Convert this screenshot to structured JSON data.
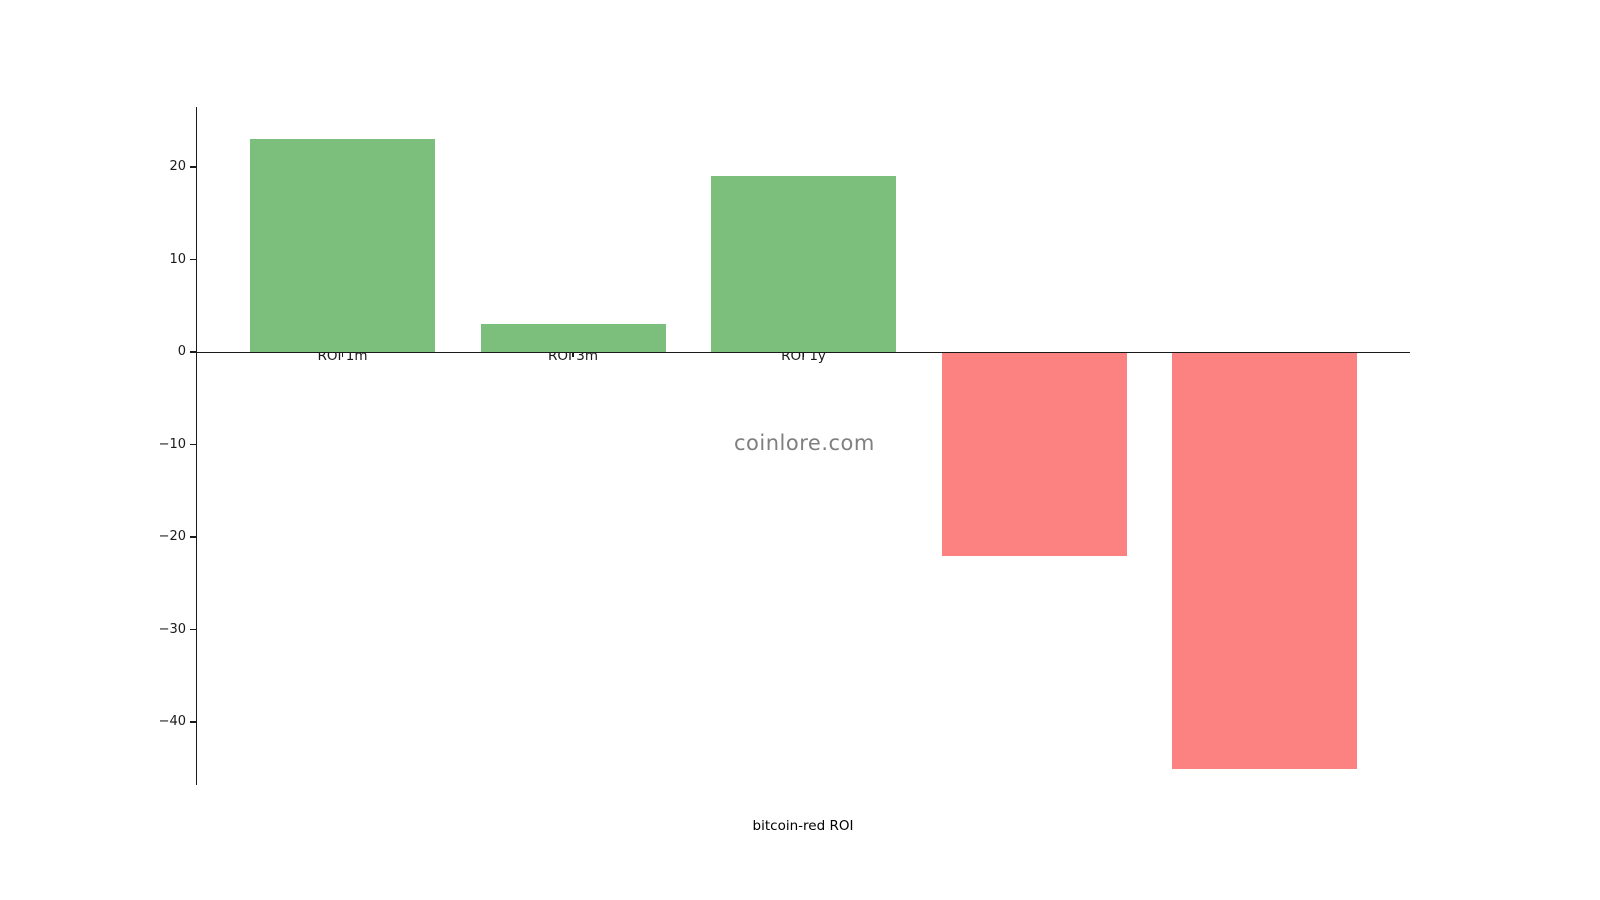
{
  "chart_data": {
    "type": "bar",
    "xlabel": "bitcoin-red ROI",
    "ylabel": "",
    "watermark": "coinlore.com",
    "categories": [
      "ROI 1m",
      "ROI 3m",
      "ROI 1y",
      "",
      ""
    ],
    "values": [
      23,
      3,
      19,
      -22,
      -45
    ],
    "bar_colors": [
      "#7cbe7c",
      "#7cbe7c",
      "#7cbe7c",
      "#fc8181",
      "#fc8181"
    ],
    "positive_color": "#7cbe7c",
    "negative_color": "#fc8181",
    "ylim": [
      -46.8,
      26.5
    ],
    "yticks": [
      20,
      10,
      0,
      -10,
      -20,
      -30,
      -40
    ],
    "ytick_labels": [
      "20",
      "10",
      "0",
      "−10",
      "−20",
      "−30",
      "−40"
    ],
    "grid": false,
    "legend": null
  },
  "colors": {
    "axis": "#1a1a1a",
    "text": "#1a1a1a",
    "watermark": "#7f7f7f",
    "background": "#ffffff"
  }
}
